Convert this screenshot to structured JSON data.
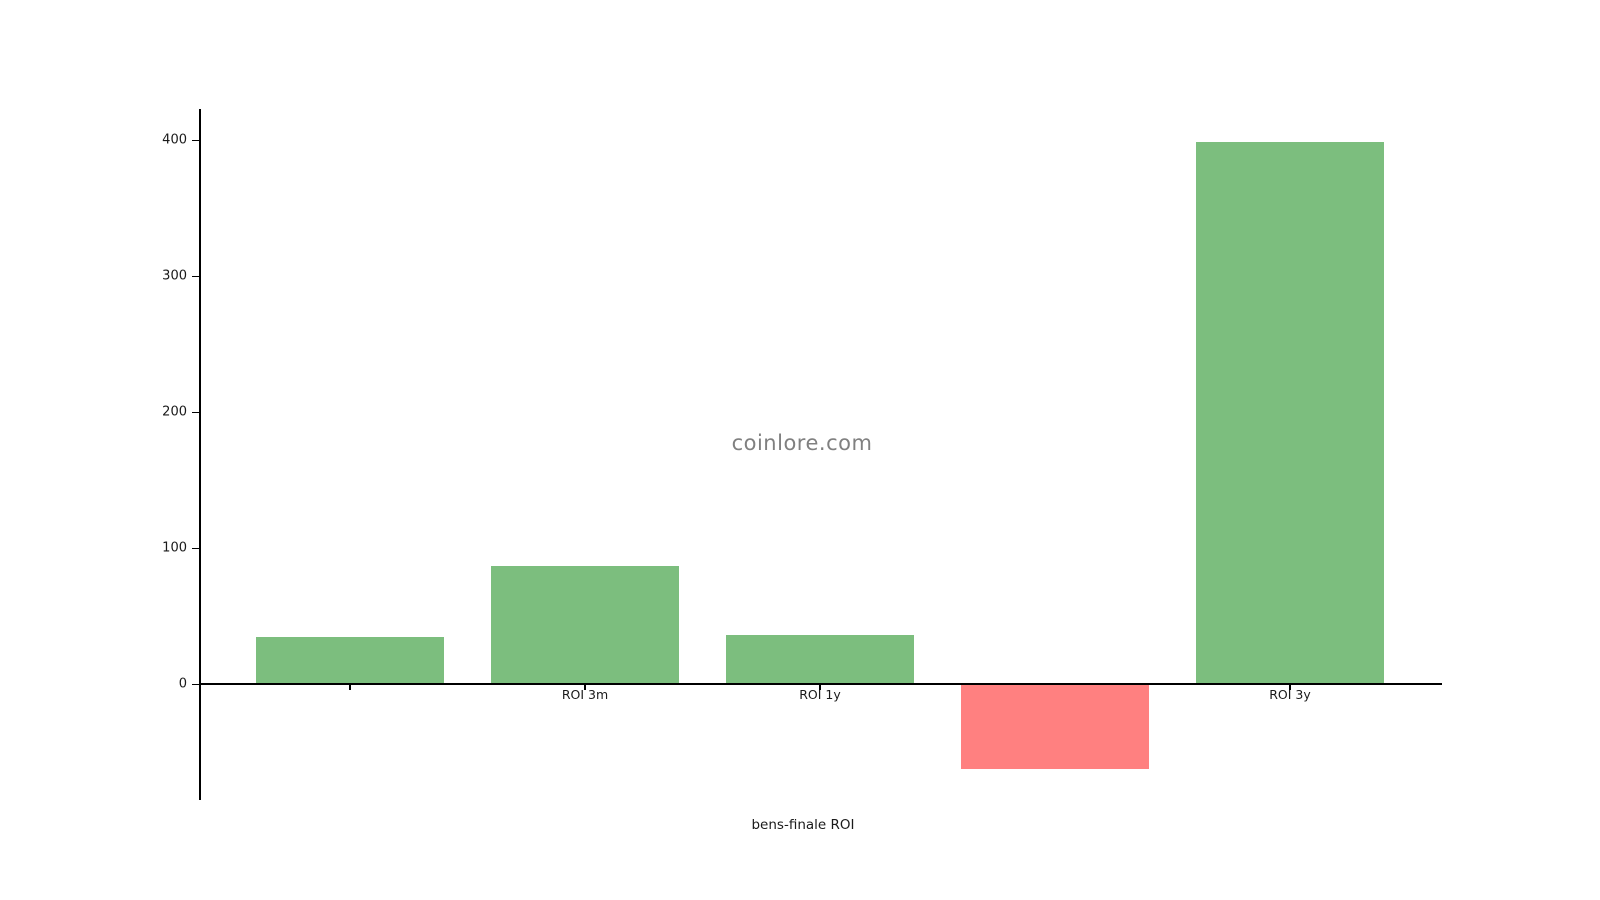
{
  "watermark": {
    "text": "coinlore.com",
    "color": "#808080"
  },
  "chart_data": {
    "type": "bar",
    "title": "bens-finale ROI",
    "categories": [
      "",
      "ROI 3m",
      "ROI 1y",
      "",
      "ROI 3y"
    ],
    "values": [
      35,
      87,
      36,
      -62,
      399
    ],
    "positive_color": "#7cbe7e",
    "negative_color": "#ff8080",
    "axis_color": "#000000",
    "yticks": [
      0,
      100,
      200,
      300,
      400
    ],
    "ylim": [
      -85,
      423
    ],
    "xlabel": "",
    "ylabel": "",
    "grid": false,
    "legend": null
  }
}
